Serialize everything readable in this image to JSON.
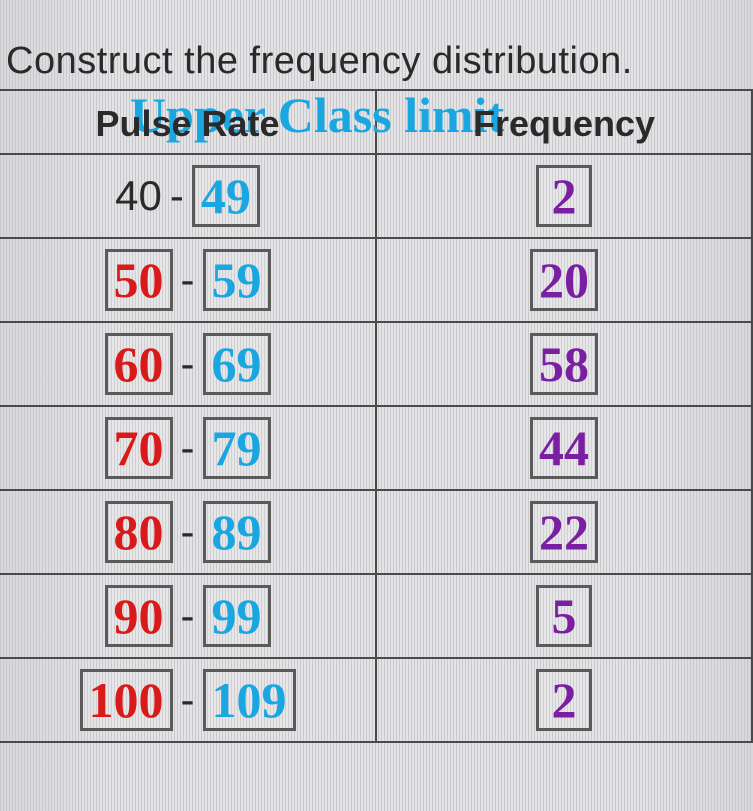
{
  "title": "Construct the frequency distribution.",
  "annotation": {
    "text": "Upper Class limit",
    "color": "#1aa6e0"
  },
  "table": {
    "columns": [
      "Pulse Rate",
      "Frequency"
    ],
    "colors": {
      "lower_hand": "#d91a1a",
      "upper_hand": "#1aa6e0",
      "freq_hand": "#7a1fa2",
      "printed": "#2a2a2a",
      "border": "#4a4a4a",
      "box_border": "#5a5a5a"
    },
    "rows": [
      {
        "lower_printed": "40",
        "lower_hand": "",
        "upper_hand": "49",
        "freq": "2"
      },
      {
        "lower_printed": "",
        "lower_hand": "50",
        "upper_hand": "59",
        "freq": "20"
      },
      {
        "lower_printed": "",
        "lower_hand": "60",
        "upper_hand": "69",
        "freq": "58"
      },
      {
        "lower_printed": "",
        "lower_hand": "70",
        "upper_hand": "79",
        "freq": "44"
      },
      {
        "lower_printed": "",
        "lower_hand": "80",
        "upper_hand": "89",
        "freq": "22"
      },
      {
        "lower_printed": "",
        "lower_hand": "90",
        "upper_hand": "99",
        "freq": "5"
      },
      {
        "lower_printed": "",
        "lower_hand": "100",
        "upper_hand": "109",
        "freq": "2"
      }
    ]
  }
}
